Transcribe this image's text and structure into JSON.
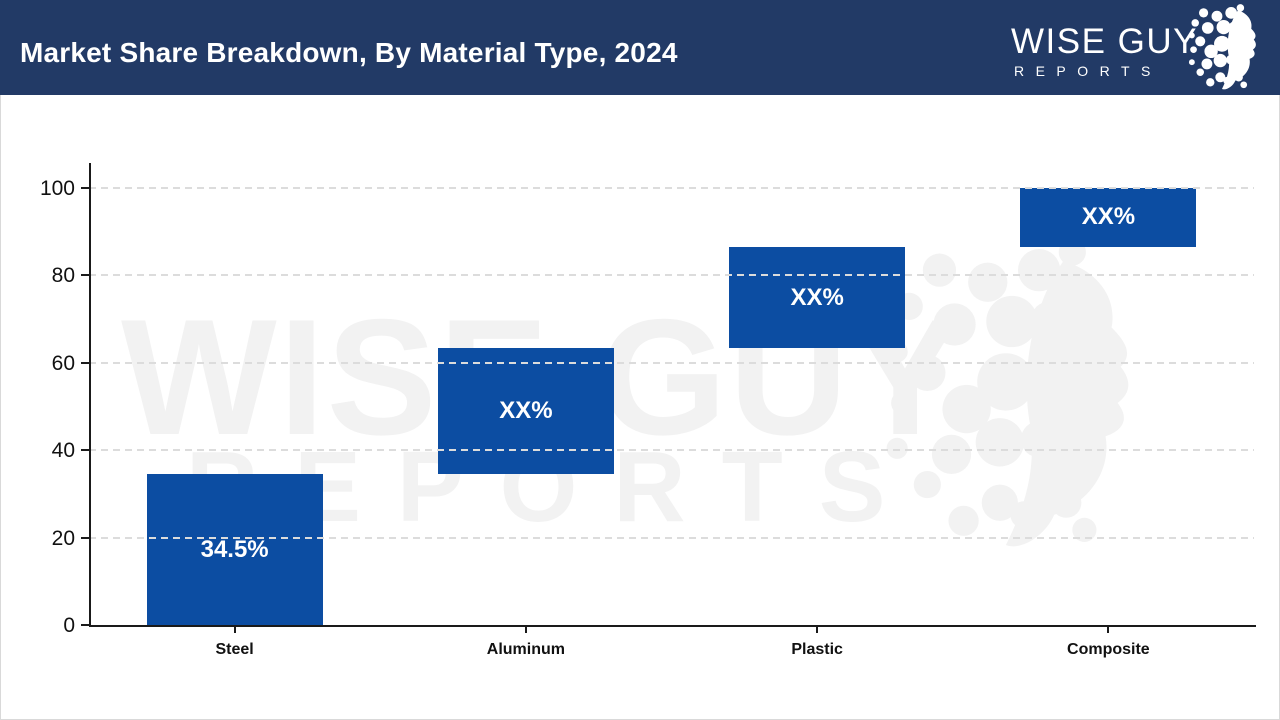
{
  "header": {
    "title": "Market Share Breakdown, By Material Type, 2024",
    "logo": {
      "brand_line1": "WISE GUY",
      "brand_line2": "REPORTS",
      "head_icon": "dotted-head-icon"
    }
  },
  "watermark": {
    "line1": "WISE GUY",
    "line2": "REPORTS"
  },
  "chart_data": {
    "type": "bar",
    "subtype": "waterfall",
    "title": "Market Share Breakdown, By Material Type, 2024",
    "categories": [
      "Steel",
      "Aluminum",
      "Plastic",
      "Composite"
    ],
    "bars": [
      {
        "category": "Steel",
        "start": 0,
        "end": 34.5,
        "value": 34.5,
        "label": "34.5%"
      },
      {
        "category": "Aluminum",
        "start": 34.5,
        "end": 63.3,
        "value": 28.8,
        "label": "XX%"
      },
      {
        "category": "Plastic",
        "start": 63.3,
        "end": 86.4,
        "value": 23.1,
        "label": "XX%"
      },
      {
        "category": "Composite",
        "start": 86.4,
        "end": 100,
        "value": 13.6,
        "label": "XX%"
      }
    ],
    "yticks": [
      0,
      20,
      40,
      60,
      80,
      100
    ],
    "ylim": [
      0,
      105
    ],
    "xlabel": "",
    "ylabel": "",
    "grid": "dashed-horizontal",
    "legend": "none",
    "background": "#FFFFFF",
    "bar_color": "#0C4DA2"
  },
  "colors": {
    "header_bg": "#223A66",
    "bar": "#0C4DA2",
    "grid": "#DCDCDC",
    "axis": "#1A1A1A",
    "watermark": "#F2F2F2",
    "title_text": "#FFFFFF",
    "edge_border": "#D9D9D9"
  }
}
